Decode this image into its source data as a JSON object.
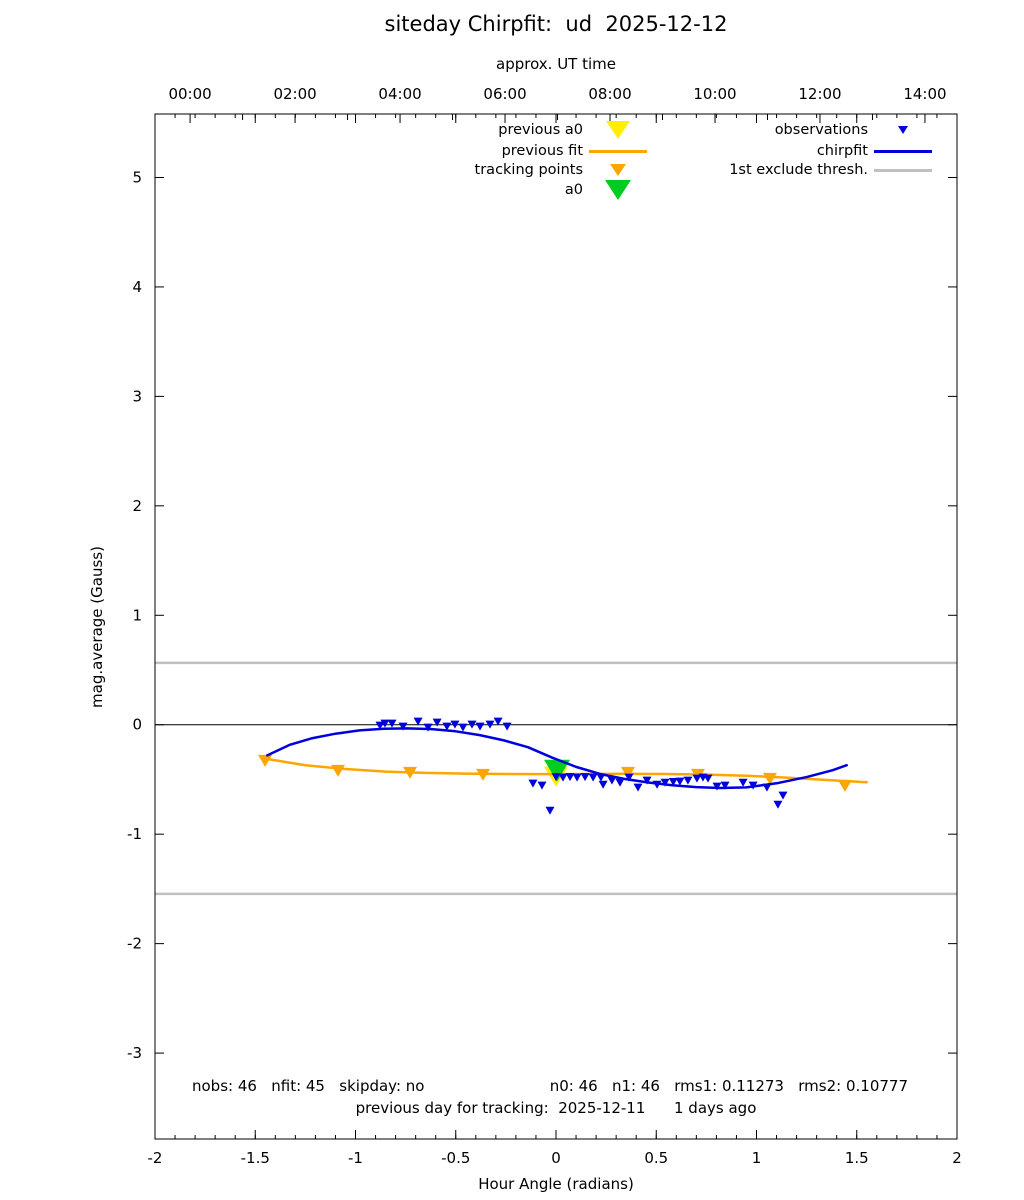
{
  "title": "siteday Chirpfit:  ud  2025-12-12",
  "axes": {
    "top_label": "approx. UT time",
    "x_label": "Hour Angle (radians)",
    "y_label": "mag.average (Gauss)"
  },
  "legend": {
    "items": [
      {
        "label": "previous a0",
        "marker": "triangle",
        "color": "#ffee00"
      },
      {
        "label": "previous fit",
        "marker": "line",
        "color": "#ffa500"
      },
      {
        "label": "tracking points",
        "marker": "triangle",
        "color": "#ffa500"
      },
      {
        "label": "a0",
        "marker": "triangle",
        "color": "#00cc22"
      },
      {
        "label": "observations",
        "marker": "triangle",
        "color": "#0000dd"
      },
      {
        "label": "chirpfit",
        "marker": "line",
        "color": "#0000dd"
      },
      {
        "label": "1st exclude thresh.",
        "marker": "line",
        "color": "#c0c0c0"
      }
    ]
  },
  "stats": {
    "line1_left": "nobs: 46   nfit: 45   skipday: no",
    "line1_right": "n0: 46   n1: 46   rms1: 0.11273   rms2: 0.10777",
    "line2": "previous day for tracking:  2025-12-11      1 days ago"
  },
  "chart_data": {
    "type": "scatter",
    "title": "siteday Chirpfit:  ud  2025-12-12",
    "xlabel": "Hour Angle (radians)",
    "ylabel": "mag.average (Gauss)",
    "x2label": "approx. UT time",
    "xlim": [
      -2,
      2
    ],
    "ylim": [
      -3.785,
      5.58
    ],
    "grid": false,
    "zero_line_y": 0,
    "exclude_thresholds": [
      0.565,
      -1.545
    ],
    "colors": {
      "threshold": "#c0c0c0",
      "zero_line": "#000000"
    },
    "x_ticks": [
      {
        "v": -2,
        "label": "-2"
      },
      {
        "v": -1.5,
        "label": "-1.5"
      },
      {
        "v": -1,
        "label": "-1"
      },
      {
        "v": -0.5,
        "label": "-0.5"
      },
      {
        "v": 0,
        "label": "0"
      },
      {
        "v": 0.5,
        "label": "0.5"
      },
      {
        "v": 1,
        "label": "1"
      },
      {
        "v": 1.5,
        "label": "1.5"
      },
      {
        "v": 2,
        "label": "2"
      }
    ],
    "x_minor_step": 0.1,
    "y_ticks": [
      {
        "v": -3,
        "label": "-3"
      },
      {
        "v": -2,
        "label": "-2"
      },
      {
        "v": -1,
        "label": "-1"
      },
      {
        "v": 0,
        "label": "0"
      },
      {
        "v": 1,
        "label": "1"
      },
      {
        "v": 2,
        "label": "2"
      },
      {
        "v": 3,
        "label": "3"
      },
      {
        "v": 4,
        "label": "4"
      },
      {
        "v": 5,
        "label": "5"
      }
    ],
    "x2_ticks": [
      {
        "v": -1.825,
        "label": "00:00"
      },
      {
        "v": -1.3014,
        "label": "02:00"
      },
      {
        "v": -0.7778,
        "label": "04:00"
      },
      {
        "v": -0.2542,
        "label": "06:00"
      },
      {
        "v": 0.2694,
        "label": "08:00"
      },
      {
        "v": 0.793,
        "label": "10:00"
      },
      {
        "v": 1.3166,
        "label": "12:00"
      },
      {
        "v": 1.8402,
        "label": "14:00"
      }
    ],
    "x2_minor_ticks": [
      -1.5632,
      -1.0396,
      -0.516,
      0.0076,
      0.5312,
      1.0548,
      1.5784
    ],
    "series": [
      {
        "name": "previous a0",
        "type": "points",
        "marker": "triangle-down",
        "color": "#ffee00",
        "size": [
          24,
          20
        ],
        "points": [
          [
            0.0,
            -0.465
          ]
        ]
      },
      {
        "name": "previous fit",
        "type": "line",
        "color": "#ffa500",
        "width": 2.5,
        "points": [
          [
            -1.451,
            -0.31
          ],
          [
            -1.25,
            -0.37
          ],
          [
            -1.05,
            -0.405
          ],
          [
            -0.85,
            -0.428
          ],
          [
            -0.65,
            -0.44
          ],
          [
            -0.45,
            -0.447
          ],
          [
            -0.25,
            -0.45
          ],
          [
            -0.05,
            -0.451
          ],
          [
            0.15,
            -0.45
          ],
          [
            0.35,
            -0.448
          ],
          [
            0.55,
            -0.45
          ],
          [
            0.75,
            -0.456
          ],
          [
            0.95,
            -0.466
          ],
          [
            1.15,
            -0.483
          ],
          [
            1.35,
            -0.505
          ],
          [
            1.55,
            -0.525
          ]
        ]
      },
      {
        "name": "tracking points",
        "type": "points",
        "marker": "triangle-down",
        "color": "#ffa500",
        "size": [
          14,
          12
        ],
        "points": [
          [
            -1.451,
            -0.325
          ],
          [
            -1.087,
            -0.416
          ],
          [
            -0.728,
            -0.434
          ],
          [
            -0.364,
            -0.453
          ],
          [
            0.0,
            -0.445
          ],
          [
            0.359,
            -0.434
          ],
          [
            0.708,
            -0.453
          ],
          [
            1.067,
            -0.489
          ],
          [
            1.441,
            -0.553
          ]
        ]
      },
      {
        "name": "a0",
        "type": "points",
        "marker": "triangle-down",
        "color": "#00cc22",
        "size": [
          26,
          22
        ],
        "points": [
          [
            0.005,
            -0.41
          ]
        ]
      },
      {
        "name": "observations",
        "type": "points",
        "marker": "triangle-down",
        "color": "#0000dd",
        "size": [
          9,
          8
        ],
        "points": [
          [
            -0.878,
            -0.005
          ],
          [
            -0.853,
            0.014
          ],
          [
            -0.818,
            0.014
          ],
          [
            -0.763,
            -0.014
          ],
          [
            -0.688,
            0.032
          ],
          [
            -0.638,
            -0.023
          ],
          [
            -0.593,
            0.023
          ],
          [
            -0.544,
            -0.014
          ],
          [
            -0.504,
            0.005
          ],
          [
            -0.464,
            -0.023
          ],
          [
            -0.419,
            0.005
          ],
          [
            -0.379,
            -0.014
          ],
          [
            -0.329,
            0.005
          ],
          [
            -0.289,
            0.032
          ],
          [
            -0.244,
            -0.014
          ],
          [
            -0.115,
            -0.535
          ],
          [
            -0.07,
            -0.553
          ],
          [
            -0.03,
            -0.782
          ],
          [
            0.0,
            -0.475
          ],
          [
            0.035,
            -0.48
          ],
          [
            0.07,
            -0.475
          ],
          [
            0.105,
            -0.48
          ],
          [
            0.145,
            -0.475
          ],
          [
            0.185,
            -0.48
          ],
          [
            0.224,
            -0.48
          ],
          [
            0.235,
            -0.545
          ],
          [
            0.279,
            -0.507
          ],
          [
            0.319,
            -0.526
          ],
          [
            0.364,
            -0.48
          ],
          [
            0.409,
            -0.571
          ],
          [
            0.454,
            -0.507
          ],
          [
            0.504,
            -0.545
          ],
          [
            0.544,
            -0.526
          ],
          [
            0.585,
            -0.52
          ],
          [
            0.618,
            -0.516
          ],
          [
            0.658,
            -0.507
          ],
          [
            0.703,
            -0.489
          ],
          [
            0.733,
            -0.48
          ],
          [
            0.758,
            -0.489
          ],
          [
            0.803,
            -0.562
          ],
          [
            0.843,
            -0.553
          ],
          [
            0.933,
            -0.526
          ],
          [
            0.983,
            -0.553
          ],
          [
            1.052,
            -0.571
          ],
          [
            1.107,
            -0.727
          ],
          [
            1.132,
            -0.644
          ]
        ]
      },
      {
        "name": "chirpfit",
        "type": "line",
        "color": "#0000dd",
        "width": 2.5,
        "points": [
          [
            -1.44,
            -0.28
          ],
          [
            -1.33,
            -0.185
          ],
          [
            -1.22,
            -0.125
          ],
          [
            -1.1,
            -0.082
          ],
          [
            -0.98,
            -0.052
          ],
          [
            -0.86,
            -0.037
          ],
          [
            -0.74,
            -0.033
          ],
          [
            -0.62,
            -0.04
          ],
          [
            -0.5,
            -0.06
          ],
          [
            -0.38,
            -0.095
          ],
          [
            -0.26,
            -0.143
          ],
          [
            -0.14,
            -0.205
          ],
          [
            -0.02,
            -0.3
          ],
          [
            0.1,
            -0.385
          ],
          [
            0.22,
            -0.45
          ],
          [
            0.34,
            -0.495
          ],
          [
            0.46,
            -0.528
          ],
          [
            0.58,
            -0.553
          ],
          [
            0.7,
            -0.57
          ],
          [
            0.82,
            -0.578
          ],
          [
            0.95,
            -0.572
          ],
          [
            1.1,
            -0.535
          ],
          [
            1.25,
            -0.478
          ],
          [
            1.38,
            -0.415
          ],
          [
            1.45,
            -0.37
          ]
        ]
      }
    ]
  }
}
